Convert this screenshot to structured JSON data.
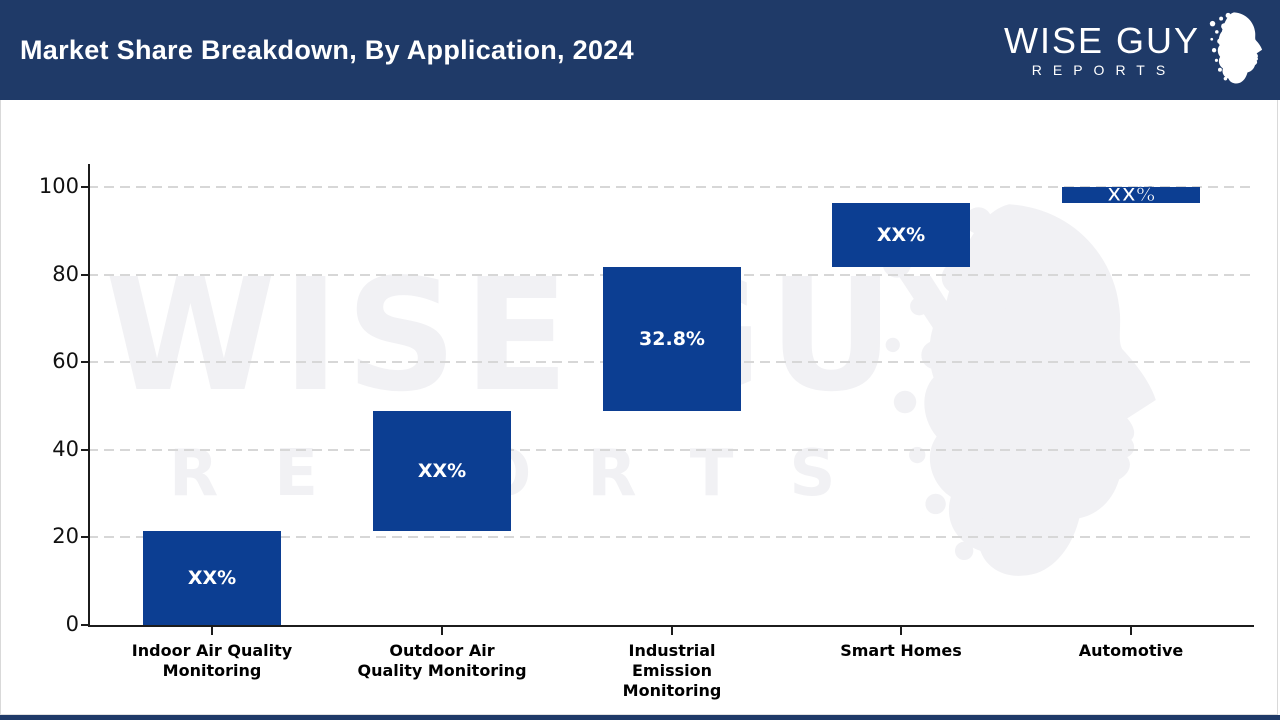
{
  "header": {
    "title": "Market Share Breakdown, By Application, 2024",
    "logo": {
      "line1": "WISE GUY",
      "line2": "REPORTS"
    }
  },
  "watermark": {
    "line1": "WISE GUY",
    "line2": "REPORTS"
  },
  "colors": {
    "header_bg": "#1f3a68",
    "bar": "#0c3e92",
    "grid": "#d7d7d7",
    "axis": "#1c1c1c",
    "bar_label_text": "#ffffff",
    "watermark": "#f1f1f4"
  },
  "chart_data": {
    "type": "bar",
    "subtype": "waterfall",
    "title": "Market Share Breakdown, By Application, 2024",
    "categories": [
      "Indoor Air Quality\nMonitoring",
      "Outdoor Air\nQuality Monitoring",
      "Industrial\nEmission\nMonitoring",
      "Smart Homes",
      "Automotive"
    ],
    "values": [
      21.5,
      27.4,
      32.8,
      14.6,
      3.7
    ],
    "labels": [
      "XX%",
      "XX%",
      "32.8%",
      "XX%",
      "XX%"
    ],
    "xlabel": "",
    "ylabel": "",
    "ylim": [
      0,
      100
    ],
    "yticks": [
      0,
      20,
      40,
      60,
      80,
      100
    ],
    "grid": "horizontal-dashed",
    "legend": "none"
  }
}
